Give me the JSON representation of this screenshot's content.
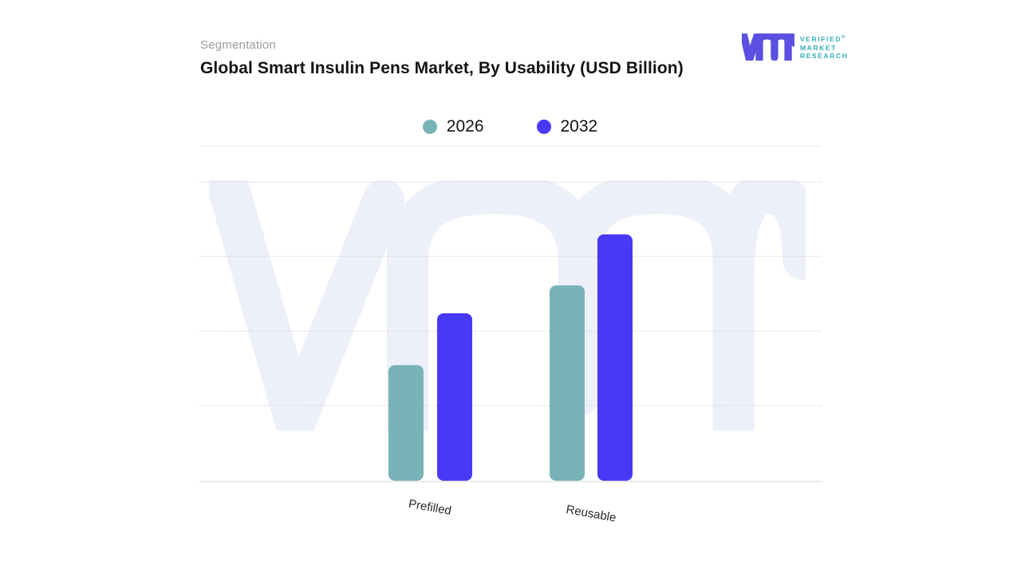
{
  "header": {
    "eyebrow": "Segmentation",
    "title": "Global Smart Insulin Pens Market, By Usability (USD Billion)"
  },
  "brand": {
    "name": "Verified Market Research",
    "lines": [
      "VERIFIED",
      "MARKET",
      "RESEARCH"
    ],
    "registered_mark": "®",
    "glyph": "vmr-monogram",
    "glyph_color": "#5b50e1",
    "text_color": "#35aeb9"
  },
  "colors": {
    "series_2026": "#78b3b7",
    "series_2032": "#4839f5",
    "gridline": "#dcdcdc",
    "baseline": "#e8e8e8",
    "watermark": "#edeff9",
    "title_text": "#141414",
    "eyebrow_text": "#9b9b9b"
  },
  "chart_data": {
    "type": "bar",
    "title": "Global Smart Insulin Pens Market, By Usability (USD Billion)",
    "categories": [
      "Prefilled",
      "Reusable"
    ],
    "series": [
      {
        "name": "2026",
        "color": "#78b3b7",
        "values": [
          1.55,
          2.62
        ]
      },
      {
        "name": "2032",
        "color": "#4839f5",
        "values": [
          2.25,
          3.3
        ]
      }
    ],
    "xlabel": "",
    "ylabel": "USD Billion",
    "value_note": "No numeric y-axis tick labels shown; values estimated in gridline units (1 unit per dashed gridline, baseline = 0)",
    "y_axis": {
      "tick_labels_visible": false,
      "gridline_values": [
        1,
        2,
        3,
        4
      ],
      "ylim": [
        0,
        4.48
      ]
    },
    "grid": "horizontal-dashed",
    "legend_position": "top-center",
    "legend_entries": [
      "2026",
      "2032"
    ],
    "watermark": "vmr-monogram"
  }
}
